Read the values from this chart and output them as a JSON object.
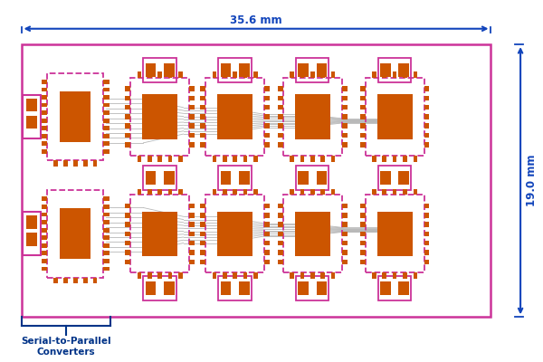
{
  "bg_color": "#ffffff",
  "board_color": "#ffffff",
  "board_border_color": "#cc3399",
  "trace_color": "#b8b8b8",
  "pad_color": "#cc5500",
  "dimension_color": "#1144bb",
  "label_color": "#003388",
  "title_top": "35.6 mm",
  "title_right": "19.0 mm",
  "label_bottom": "Serial-to-Parallel\nConverters"
}
